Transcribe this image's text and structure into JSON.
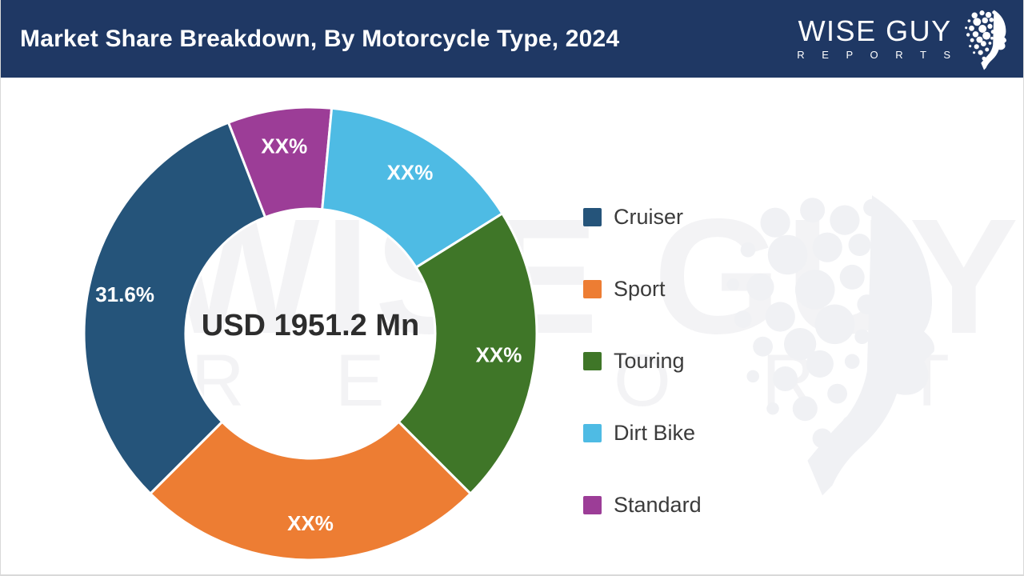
{
  "header": {
    "title": "Market Share Breakdown, By Motorcycle Type, 2024",
    "bg_color": "#1f3864",
    "brand": {
      "line1": "WISE GUY",
      "line2": "R E P O R T S"
    }
  },
  "watermark": {
    "line1": "WISE GUY",
    "line2": "R E P O R T S",
    "color": "#f3f3f5"
  },
  "chart_data": {
    "type": "pie",
    "subtype": "donut",
    "title": "Market Share Breakdown, By Motorcycle Type, 2024",
    "center_label": "USD 1951.2 Mn",
    "units": "percent market share",
    "legend_position": "right",
    "start_angle_deg": -21.24,
    "direction": "counterclockwise",
    "slice_label_color": "#ffffff",
    "segments": [
      {
        "name": "Cruiser",
        "label": "31.6%",
        "value": 31.6,
        "estimated": false,
        "color": "#25547A"
      },
      {
        "name": "Sport",
        "label": "XX%",
        "value": 25.0,
        "estimated": true,
        "color": "#ED7D33"
      },
      {
        "name": "Touring",
        "label": "XX%",
        "value": 21.4,
        "estimated": true,
        "color": "#3F7628"
      },
      {
        "name": "Dirt Bike",
        "label": "XX%",
        "value": 14.6,
        "estimated": true,
        "color": "#4EBBE4"
      },
      {
        "name": "Standard",
        "label": "XX%",
        "value": 7.4,
        "estimated": true,
        "color": "#9C3D97"
      }
    ]
  }
}
